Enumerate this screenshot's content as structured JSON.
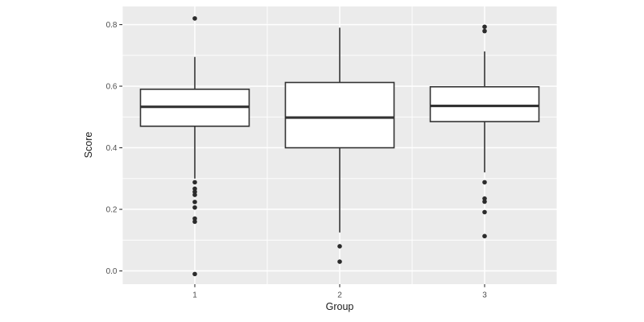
{
  "chart_data": {
    "type": "boxplot",
    "title": "",
    "xlabel": "Group",
    "ylabel": "Score",
    "categories": [
      "1",
      "2",
      "3"
    ],
    "x_positions": [
      1,
      2,
      3
    ],
    "xlim": [
      0.5,
      3.5
    ],
    "ylim": [
      -0.043,
      0.859
    ],
    "y_major_ticks": [
      0.0,
      0.2,
      0.4,
      0.6,
      0.8
    ],
    "y_tick_labels": [
      "0.0",
      "0.2",
      "0.4",
      "0.6",
      "0.8"
    ],
    "y_minor_gridlines": [
      0.1,
      0.3,
      0.5,
      0.7
    ],
    "x_minor_gridlines": [
      0.5,
      1.5,
      2.5,
      3.5
    ],
    "grid": true,
    "legend": "none",
    "box_width": 0.75,
    "boxes": [
      {
        "group": "1",
        "x": 1,
        "whisker_low": 0.3,
        "q1": 0.47,
        "median": 0.533,
        "q3": 0.59,
        "whisker_high": 0.695,
        "outliers": [
          0.82,
          0.288,
          0.267,
          0.257,
          0.247,
          0.224,
          0.206,
          0.17,
          0.16,
          -0.01
        ]
      },
      {
        "group": "2",
        "x": 2,
        "whisker_low": 0.125,
        "q1": 0.4,
        "median": 0.498,
        "q3": 0.612,
        "whisker_high": 0.79,
        "outliers": [
          0.08,
          0.03
        ]
      },
      {
        "group": "3",
        "x": 3,
        "whisker_low": 0.32,
        "q1": 0.485,
        "median": 0.536,
        "q3": 0.598,
        "whisker_high": 0.713,
        "outliers": [
          0.793,
          0.779,
          0.288,
          0.235,
          0.225,
          0.191,
          0.113
        ]
      }
    ],
    "style": {
      "panel_background": "#EBEBEB",
      "grid_color": "#FFFFFF",
      "box_fill": "#FFFFFF",
      "line_color": "#333333",
      "point_color": "#2B2B2B",
      "tick_color": "#333333",
      "tick_label_color": "#4D4D4D",
      "axis_title_color": "#1A1A1A"
    }
  }
}
